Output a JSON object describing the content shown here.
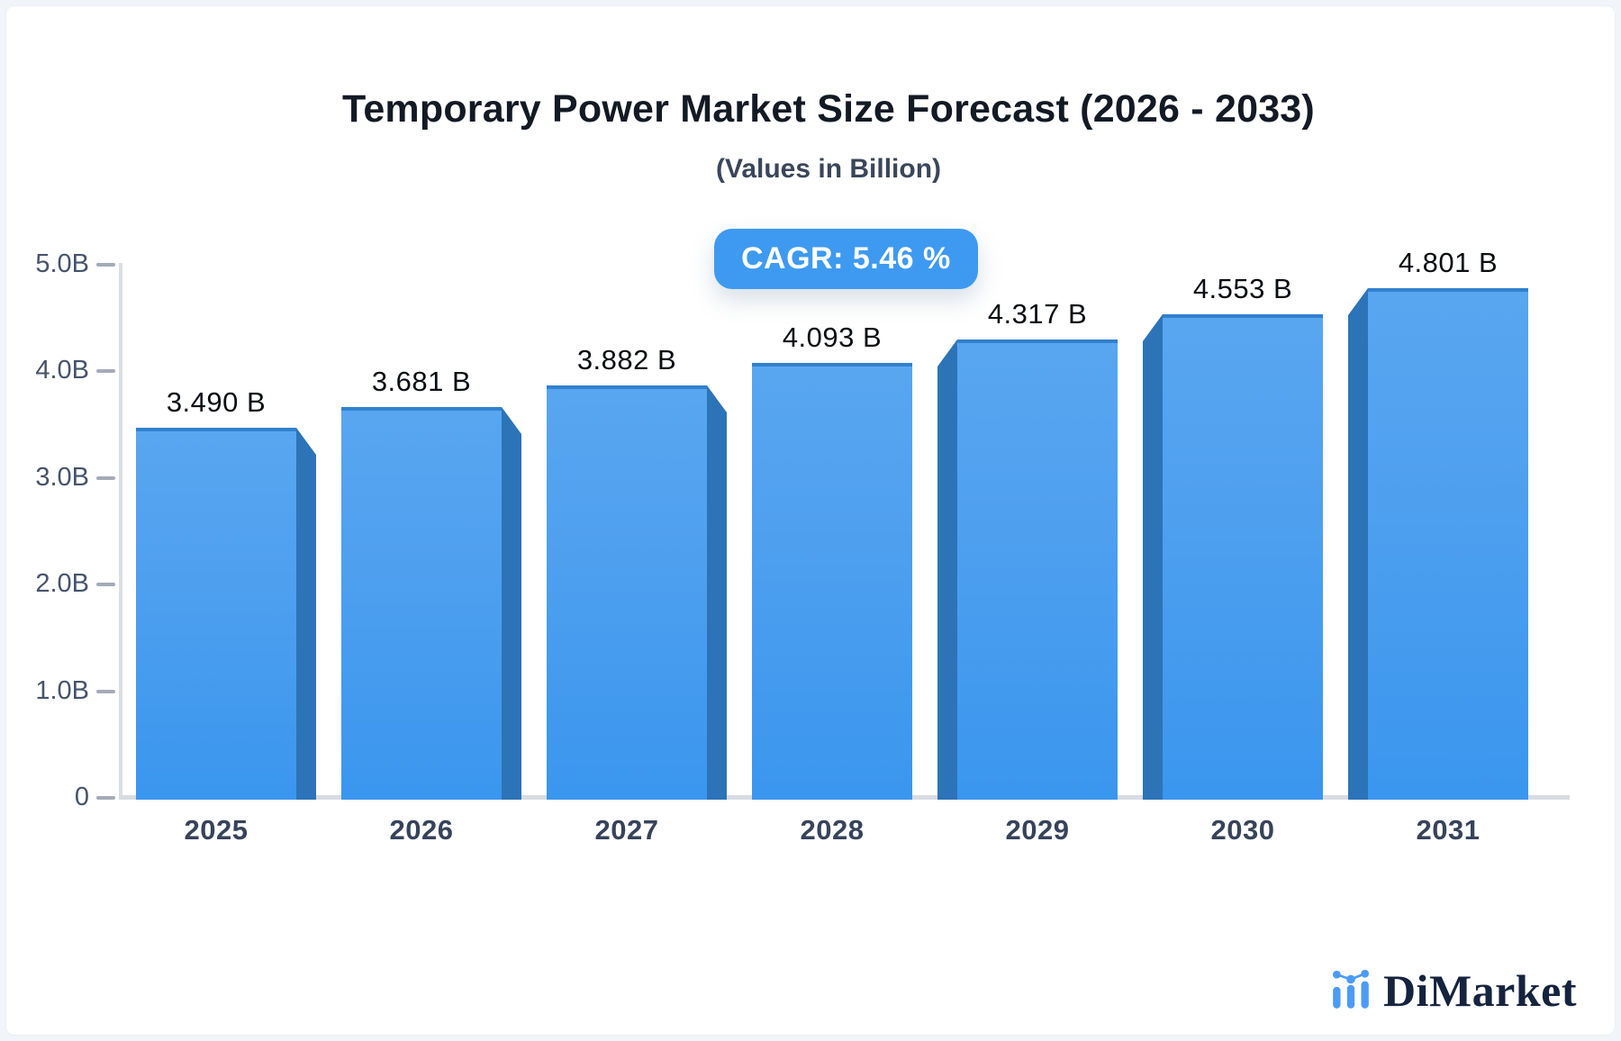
{
  "header": {
    "title": "Temporary Power Market Size Forecast (2026 - 2033)",
    "subtitle": "(Values in Billion)"
  },
  "badge": {
    "label": "CAGR: 5.46 %",
    "background_color": "#3e9af0",
    "text_color": "#ffffff"
  },
  "chart_data": {
    "type": "bar",
    "title": "Temporary Power Market Size Forecast (2026 - 2033)",
    "subtitle": "(Values in Billion)",
    "categories": [
      "2025",
      "2026",
      "2027",
      "2028",
      "2029",
      "2030",
      "2031"
    ],
    "values": [
      3.49,
      3.681,
      3.882,
      4.093,
      4.317,
      4.553,
      4.801
    ],
    "bar_labels": [
      "3.490 B",
      "3.681 B",
      "3.882 B",
      "4.093 B",
      "4.317 B",
      "4.553 B",
      "4.801 B"
    ],
    "cagr": "5.46 %",
    "xlabel": "",
    "ylabel": "",
    "ylim": [
      0,
      5.0
    ],
    "yticks": [
      {
        "label": "5.0B",
        "value": 5.0
      },
      {
        "label": "4.0B",
        "value": 4.0
      },
      {
        "label": "3.0B",
        "value": 3.0
      },
      {
        "label": "2.0B",
        "value": 2.0
      },
      {
        "label": "1.0B",
        "value": 1.0
      },
      {
        "label": "0",
        "value": 0.0
      }
    ],
    "grid": false,
    "legend": "none",
    "bar_color_top": "#58a6f0",
    "bar_color_bottom": "#3a96ee",
    "bar_side_color": "#2c74b7",
    "bar_top_edge_color": "#3181ce"
  },
  "logo": {
    "text": "DiMarket",
    "icon": "bar-chart-line-icon",
    "icon_color": "#4c9cf5",
    "text_color": "#16233e"
  }
}
